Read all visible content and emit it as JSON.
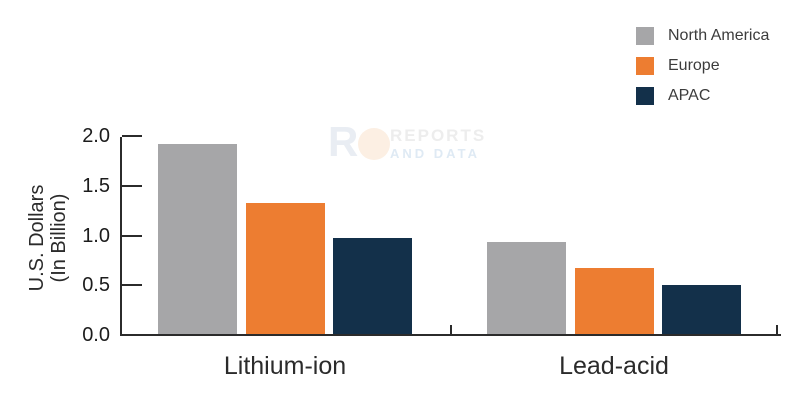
{
  "chart_data": {
    "type": "bar",
    "categories": [
      "Lithium-ion",
      "Lead-acid"
    ],
    "series": [
      {
        "name": "North America",
        "color": "#a6a6a8",
        "values": [
          1.92,
          0.93
        ]
      },
      {
        "name": "Europe",
        "color": "#ed7d31",
        "values": [
          1.33,
          0.67
        ]
      },
      {
        "name": "APAC",
        "color": "#13304a",
        "values": [
          0.97,
          0.5
        ]
      }
    ],
    "title": "",
    "xlabel": "",
    "ylabel_lines": [
      "U.S. Dollars",
      "(In Billion)"
    ],
    "ylim": [
      0.0,
      2.0
    ],
    "yticks": [
      0.0,
      0.5,
      1.0,
      1.5,
      2.0
    ],
    "ytick_labels": [
      "0.0",
      "0.5",
      "1.0",
      "1.5",
      "2.0"
    ],
    "grid": false,
    "legend_position": "top-right",
    "axis_color": "#2b2b2b"
  },
  "watermark": {
    "icon": "reports-and-data-logo",
    "line1": "REPORTS",
    "line2": "AND DATA"
  }
}
